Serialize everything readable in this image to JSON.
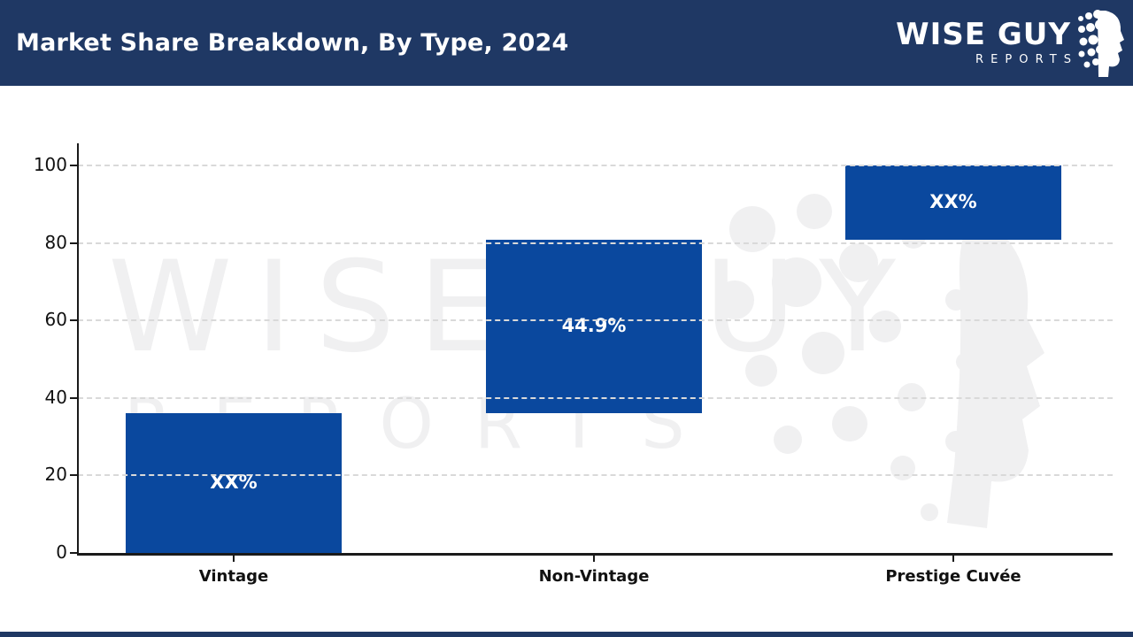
{
  "header": {
    "title": "Market Share Breakdown, By Type, 2024",
    "bg_color": "#1f3864",
    "logo": {
      "line1": "WISE GUY",
      "line2": "REPORTS"
    }
  },
  "watermark": {
    "line1": "WISE GUY",
    "line2": "REPORTS"
  },
  "chart_data": {
    "type": "bar",
    "subtype": "waterfall",
    "title": "Market Share Breakdown, By Type, 2024",
    "categories": [
      "Vintage",
      "Non-Vintage",
      "Prestige Cuvée"
    ],
    "segments": [
      {
        "category": "Vintage",
        "start": 0,
        "end": 36,
        "label": "XX%"
      },
      {
        "category": "Non-Vintage",
        "start": 36,
        "end": 80.9,
        "label": "44.9%",
        "value": 44.9
      },
      {
        "category": "Prestige Cuvée",
        "start": 80.9,
        "end": 100,
        "label": "XX%"
      }
    ],
    "yticks": [
      0,
      20,
      40,
      60,
      80,
      100
    ],
    "ylim": [
      0,
      105
    ],
    "xlabel": "",
    "ylabel": "",
    "grid": "horizontal-dashed",
    "legend": "none",
    "bar_color": "#0a489e",
    "bar_label_color": "#ffffff",
    "axis_color": "#1a1a1a",
    "grid_color": "#d9d9d9"
  }
}
